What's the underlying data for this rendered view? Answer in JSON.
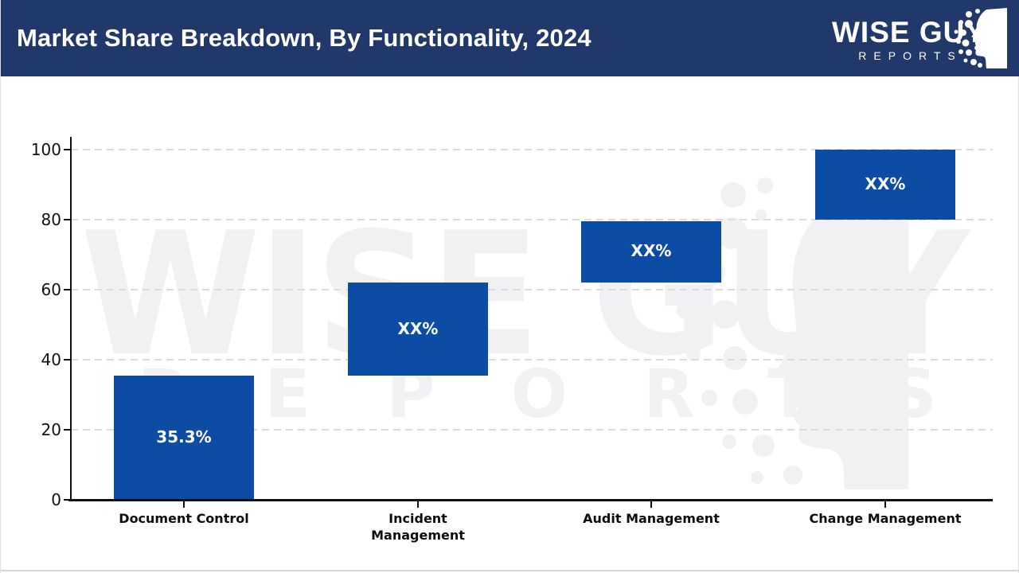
{
  "header": {
    "title": "Market Share Breakdown, By Functionality, 2024",
    "logo": {
      "line1": "WISE GUY",
      "line2": "REPORTS"
    }
  },
  "watermark": {
    "line1": "WISE GUY",
    "line2": "REPORTS"
  },
  "colors": {
    "header_bg": "#21386A",
    "bar": "#0C4CA4",
    "grid": "#dcdcdc",
    "axis": "#111111",
    "bar_label": "#ffffff",
    "watermark": "#f1f1f4"
  },
  "chart_data": {
    "type": "bar",
    "subtype": "floating-waterfall",
    "title": "Market Share Breakdown, By Functionality, 2024",
    "xlabel": "",
    "ylabel": "",
    "categories": [
      "Document Control",
      "Incident\nManagement",
      "Audit Management",
      "Change Management"
    ],
    "segments": [
      {
        "category": "Document Control",
        "start": 0,
        "end": 35.3,
        "label": "35.3%"
      },
      {
        "category": "Incident Management",
        "start": 35.3,
        "end": 62,
        "label": "XX%"
      },
      {
        "category": "Audit Management",
        "start": 62,
        "end": 79.5,
        "label": "XX%"
      },
      {
        "category": "Change Management",
        "start": 80,
        "end": 100,
        "label": "XX%"
      }
    ],
    "yticks": [
      0,
      20,
      40,
      60,
      80,
      100
    ],
    "ylim": [
      0,
      104
    ],
    "grid": "horizontal-dashed",
    "legend": "none"
  }
}
